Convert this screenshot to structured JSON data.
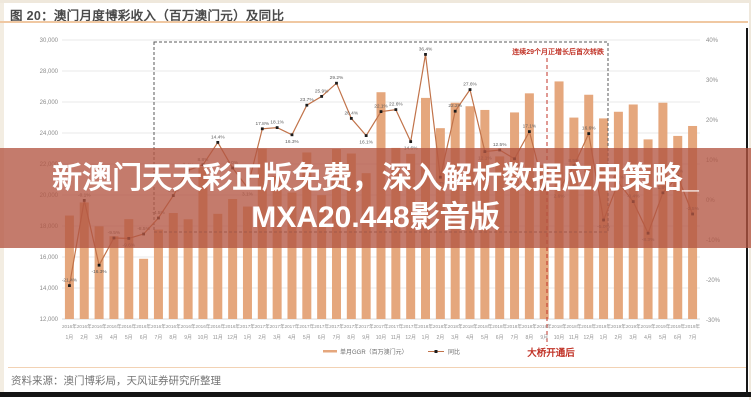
{
  "header": {
    "title": "图 20：澳门月度博彩收入（百万澳门元）及同比"
  },
  "watermark": {
    "line1": "新澳门天天彩正版免费，深入解析数据应用策略_",
    "line2": "MXA20.448影音版"
  },
  "annotations": {
    "box_note": "连续29个月正增长后首次转跌",
    "bridge_note": "大桥开通后"
  },
  "legend": {
    "bar_label": "单月GGR（百万澳门元）",
    "line_label": "同比"
  },
  "source_note": "资料来源：澳门博彩局，天风证券研究所整理",
  "colors": {
    "bar": "#E5A77D",
    "line": "#C1734A",
    "marker": "#1c1c1c",
    "grid": "#e9e9e9",
    "grid_base": "#d8d8d8",
    "axis_text": "#8c8c8c",
    "point_label": "#5a5a5a",
    "red": "#C13327",
    "box_dash": "#5a5a5a"
  },
  "chart_data": {
    "type": "bar",
    "title": "澳门月度博彩收入（百万澳门元）及同比",
    "xlabel": "",
    "ylabel_left": "百万澳门元",
    "ylabel_right": "同比%",
    "grid": true,
    "legend_position": "bottom",
    "left_axis": {
      "min": 12000,
      "max": 30000,
      "step": 2000,
      "ticks": [
        "30,000",
        "28,000",
        "26,000",
        "24,000",
        "22,000",
        "20,000",
        "18,000",
        "16,000",
        "14,000",
        "12,000"
      ]
    },
    "right_axis": {
      "min": -30,
      "max": 40,
      "step": 10,
      "ticks": [
        "40%",
        "30%",
        "20%",
        "10%",
        "0%",
        "-10%",
        "-20%",
        "-30%"
      ]
    },
    "categories": [
      "2016年1月",
      "2016年2月",
      "2016年3月",
      "2016年4月",
      "2016年5月",
      "2016年6月",
      "2016年7月",
      "2016年8月",
      "2016年9月",
      "2016年10月",
      "2016年11月",
      "2016年12月",
      "2017年1月",
      "2017年2月",
      "2017年3月",
      "2017年4月",
      "2017年5月",
      "2017年6月",
      "2017年7月",
      "2017年8月",
      "2017年9月",
      "2017年10月",
      "2017年11月",
      "2017年12月",
      "2018年1月",
      "2018年2月",
      "2018年3月",
      "2018年4月",
      "2018年5月",
      "2018年6月",
      "2018年7月",
      "2018年8月",
      "2018年9月",
      "2018年10月",
      "2018年11月",
      "2018年12月",
      "2019年1月",
      "2019年2月",
      "2019年3月",
      "2019年4月",
      "2019年5月",
      "2019年6月",
      "2019年7月"
    ],
    "series": [
      {
        "name": "单月GGR（百万澳门元）",
        "type": "bar",
        "axis": "left",
        "values": [
          18674,
          19521,
          17980,
          17340,
          18443,
          15885,
          17771,
          18837,
          18434,
          21807,
          18786,
          19743,
          19255,
          22992,
          21232,
          20164,
          22744,
          19992,
          22963,
          22676,
          21408,
          26631,
          23038,
          22656,
          26265,
          24312,
          25952,
          25727,
          25488,
          22491,
          25327,
          26559,
          21952,
          27328,
          24995,
          26468,
          24942,
          25370,
          25840,
          23588,
          25952,
          23812,
          24453
        ]
      },
      {
        "name": "同比",
        "type": "line",
        "axis": "right",
        "values": [
          -21.4,
          -0.1,
          -16.3,
          -9.5,
          -9.6,
          -8.5,
          -4.5,
          1.1,
          7.4,
          8.8,
          14.4,
          8.0,
          3.1,
          17.8,
          18.1,
          16.3,
          23.7,
          25.9,
          29.2,
          20.4,
          16.1,
          22.1,
          22.6,
          14.6,
          36.4,
          5.7,
          22.2,
          27.6,
          12.1,
          12.5,
          10.3,
          17.1,
          2.8,
          2.6,
          8.5,
          16.6,
          -5.0,
          4.4,
          -0.4,
          -8.3,
          1.8,
          5.9,
          -3.5
        ]
      }
    ]
  }
}
